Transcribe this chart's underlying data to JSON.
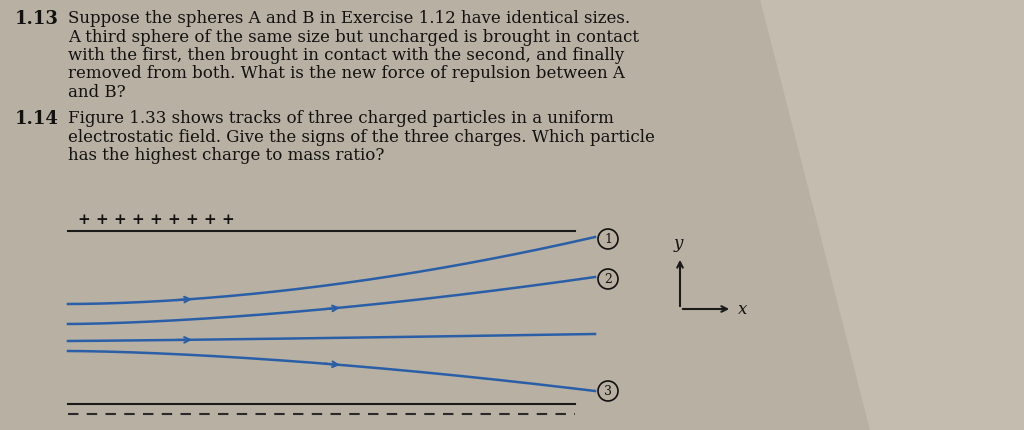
{
  "background_color": "#b8b0a2",
  "text_color": "#111111",
  "title_113": "1.13",
  "text_113_line1": "Suppose the spheres A and B in Exercise 1.12 have identical sizes.",
  "text_113_line2": "A third sphere of the same size but uncharged is brought in contact",
  "text_113_line3": "with the first, then brought in contact with the second, and finally",
  "text_113_line4": "removed from both. What is the new force of repulsion between A",
  "text_113_line5": "and B?",
  "title_114": "1.14",
  "text_114_line1": "Figure 1.33 shows tracks of three charged particles in a uniform",
  "text_114_line2": "electrostatic field. Give the signs of the three charges. Which particle",
  "text_114_line3": "has the highest charge to mass ratio?",
  "curve_color": "#2a5fa8",
  "line_color": "#1a1a1a",
  "dashed_color": "#2a2a2a",
  "fig_width": 10.24,
  "fig_height": 4.31,
  "dpi": 100
}
